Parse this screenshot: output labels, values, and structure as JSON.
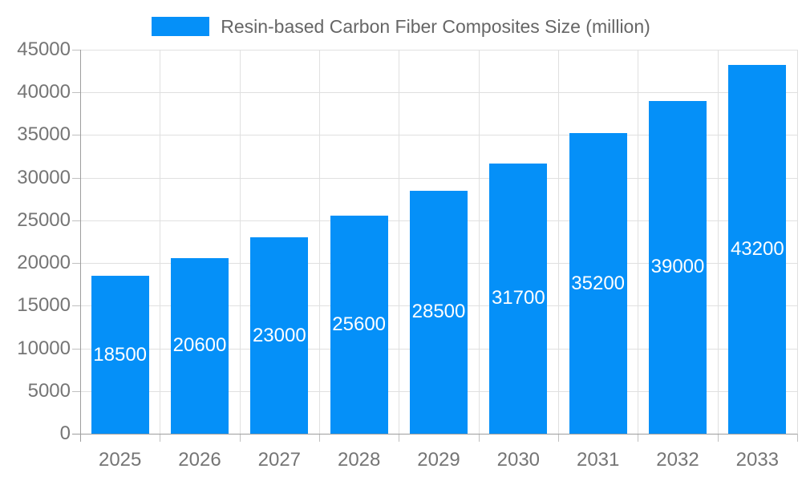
{
  "legend": {
    "label": "Resin-based Carbon Fiber Composites Size (million)"
  },
  "colors": {
    "bar": "#0590f8",
    "grid": "#e0e0e0",
    "axis": "#9e9e9e",
    "tick": "#c0c0c0",
    "axis_text": "#757575",
    "legend_text": "#666666",
    "value_label": "#ffffff",
    "background": "#ffffff"
  },
  "chart_data": {
    "type": "bar",
    "title": "Resin-based Carbon Fiber Composites Size (million)",
    "categories": [
      "2025",
      "2026",
      "2027",
      "2028",
      "2029",
      "2030",
      "2031",
      "2032",
      "2033"
    ],
    "values": [
      18500,
      20600,
      23000,
      25600,
      28500,
      31700,
      35200,
      39000,
      43200
    ],
    "xlabel": "",
    "ylabel": "",
    "ylim": [
      0,
      45000
    ],
    "y_ticks": [
      0,
      5000,
      10000,
      15000,
      20000,
      25000,
      30000,
      35000,
      40000,
      45000
    ],
    "grid": true,
    "legend_position": "top",
    "value_label_position": "inside-middle"
  }
}
